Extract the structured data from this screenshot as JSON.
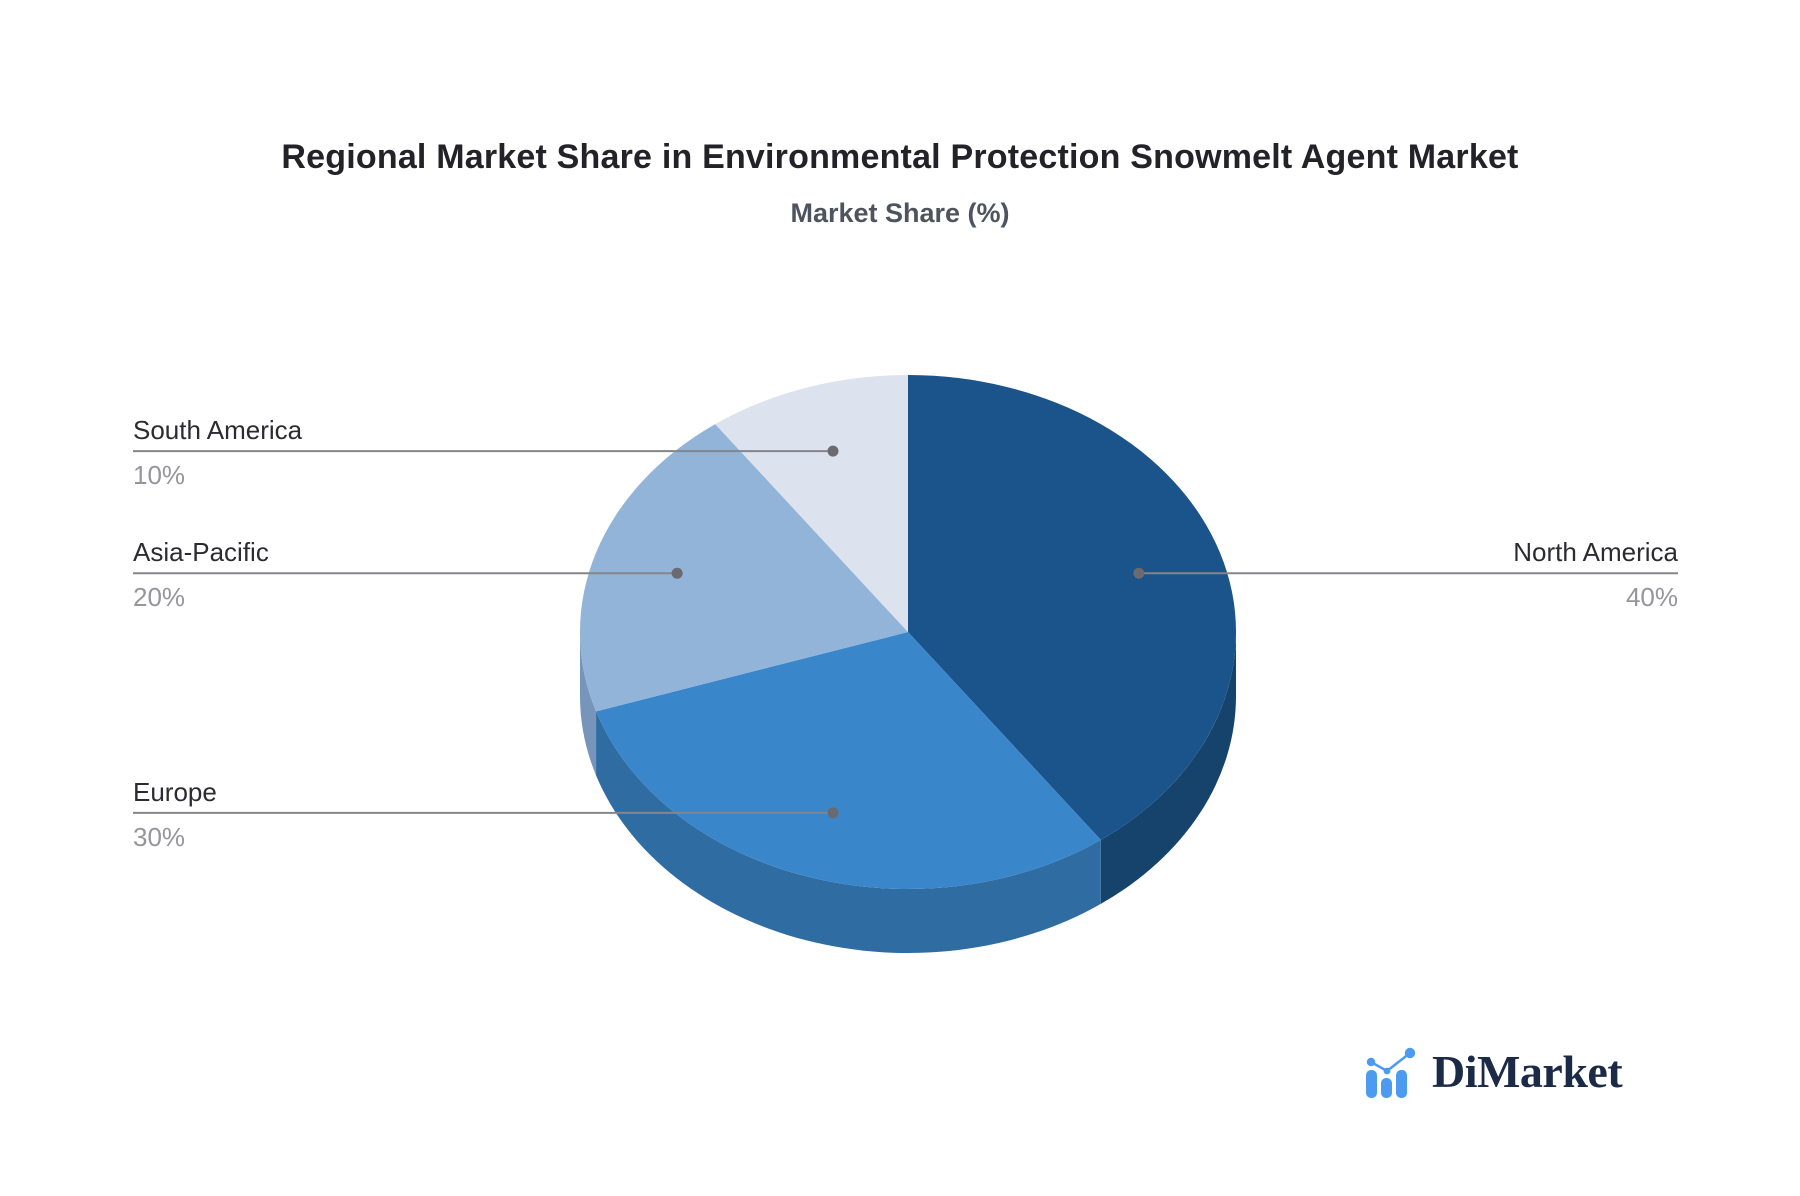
{
  "title": "Regional Market Share in Environmental Protection Snowmelt Agent Market",
  "subtitle": "Market Share (%)",
  "chart_data": {
    "type": "pie",
    "title": "Regional Market Share in Environmental Protection Snowmelt Agent Market",
    "value_axis_label": "Market Share (%)",
    "unit": "%",
    "style": "3d",
    "start_angle_deg": 0,
    "direction": "clockwise",
    "legend": "none",
    "series": [
      {
        "name": "North America",
        "value": 40,
        "label": "40%",
        "color": "#1A548B",
        "side_color": "#16436C",
        "label_side": "right"
      },
      {
        "name": "Europe",
        "value": 30,
        "label": "30%",
        "color": "#3A86CB",
        "side_color": "#2F6CA2",
        "label_side": "left"
      },
      {
        "name": "Asia-Pacific",
        "value": 20,
        "label": "20%",
        "color": "#92B4D8",
        "side_color": "#7795BB",
        "label_side": "left"
      },
      {
        "name": "South America",
        "value": 10,
        "label": "10%",
        "color": "#DCE3EF",
        "side_color": "#C5CFDE",
        "label_side": "left"
      }
    ]
  },
  "logo": {
    "text": "DiMarket",
    "icon": "bar-line-chart-icon",
    "bar_color": "#4D9BF1",
    "text_color": "#1B2A47"
  },
  "colors": {
    "background": "#FFFFFF",
    "title": "#222228",
    "subtitle": "#4E545E",
    "label_name": "#2B2B31",
    "label_value": "#95959B",
    "leader_line": "#85858A",
    "leader_dot": "#6A6A70"
  }
}
